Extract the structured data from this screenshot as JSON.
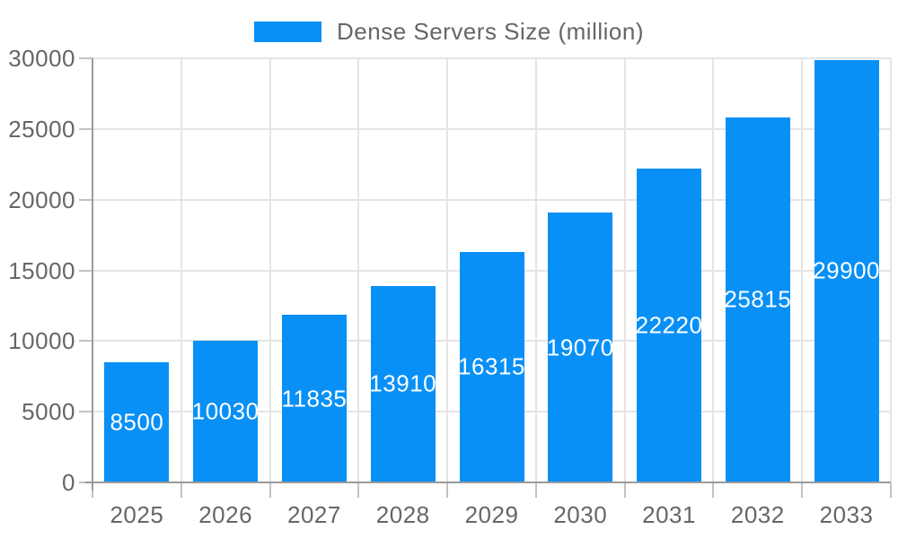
{
  "legend": {
    "label": "Dense Servers Size (million)"
  },
  "colors": {
    "bar": "#0990f6",
    "value_label": "#ffffff",
    "axis": "#9a9a9a",
    "grid": "#e4e4e4",
    "tick": "#c2c2c2",
    "text": "#666666",
    "background": "#ffffff"
  },
  "chart_data": {
    "type": "bar",
    "title": "Dense Servers Size (million)",
    "categories": [
      "2025",
      "2026",
      "2027",
      "2028",
      "2029",
      "2030",
      "2031",
      "2032",
      "2033"
    ],
    "values": [
      8500,
      10030,
      11835,
      13910,
      16315,
      19070,
      22220,
      25815,
      29900
    ],
    "series": [
      {
        "name": "Dense Servers Size (million)",
        "values": [
          8500,
          10030,
          11835,
          13910,
          16315,
          19070,
          22220,
          25815,
          29900
        ]
      }
    ],
    "xlabel": "",
    "ylabel": "",
    "ylim": [
      0,
      30000
    ],
    "yticks": [
      0,
      5000,
      10000,
      15000,
      20000,
      25000,
      30000
    ],
    "grid": true,
    "legend_position": "top-center",
    "value_labels": "inside-center"
  }
}
